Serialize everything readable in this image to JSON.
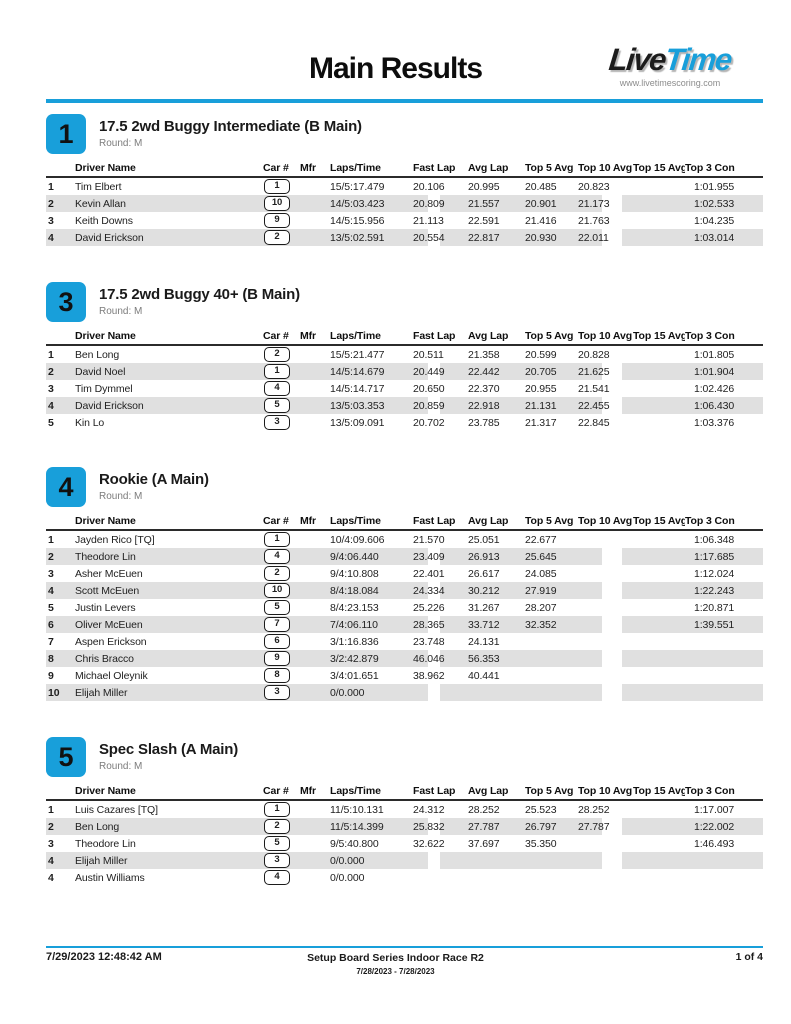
{
  "header": {
    "title": "Main Results",
    "logo_live": "Live",
    "logo_time": "Time",
    "logo_url": "www.livetimescoring.com"
  },
  "columns": [
    "Driver Name",
    "Car #",
    "Mfr",
    "Laps/Time",
    "Fast Lap",
    "Avg Lap",
    "Top 5 Avg",
    "Top 10 Avg",
    "Top 15 Avg",
    "Top 3 Con"
  ],
  "sections": [
    {
      "number": "1",
      "title": "17.5 2wd Buggy Intermediate (B Main)",
      "round": "Round: M",
      "rows": [
        {
          "pos": "1",
          "driver": "Tim Elbert",
          "car": "1",
          "mfr": "",
          "laps_time": "15/5:17.479",
          "fast_lap": "20.106",
          "avg_lap": "20.995",
          "top5": "20.485",
          "top10": "20.823",
          "top15": "",
          "top3con": "1:01.955"
        },
        {
          "pos": "2",
          "driver": "Kevin Allan",
          "car": "10",
          "mfr": "",
          "laps_time": "14/5:03.423",
          "fast_lap": "20.809",
          "avg_lap": "21.557",
          "top5": "20.901",
          "top10": "21.173",
          "top15": "",
          "top3con": "1:02.533"
        },
        {
          "pos": "3",
          "driver": "Keith Downs",
          "car": "9",
          "mfr": "",
          "laps_time": "14/5:15.956",
          "fast_lap": "21.113",
          "avg_lap": "22.591",
          "top5": "21.416",
          "top10": "21.763",
          "top15": "",
          "top3con": "1:04.235"
        },
        {
          "pos": "4",
          "driver": "David Erickson",
          "car": "2",
          "mfr": "",
          "laps_time": "13/5:02.591",
          "fast_lap": "20.554",
          "avg_lap": "22.817",
          "top5": "20.930",
          "top10": "22.011",
          "top15": "",
          "top3con": "1:03.014"
        }
      ]
    },
    {
      "number": "3",
      "title": "17.5 2wd Buggy 40+ (B Main)",
      "round": "Round: M",
      "rows": [
        {
          "pos": "1",
          "driver": "Ben Long",
          "car": "2",
          "mfr": "",
          "laps_time": "15/5:21.477",
          "fast_lap": "20.511",
          "avg_lap": "21.358",
          "top5": "20.599",
          "top10": "20.828",
          "top15": "",
          "top3con": "1:01.805"
        },
        {
          "pos": "2",
          "driver": "David Noel",
          "car": "1",
          "mfr": "",
          "laps_time": "14/5:14.679",
          "fast_lap": "20.449",
          "avg_lap": "22.442",
          "top5": "20.705",
          "top10": "21.625",
          "top15": "",
          "top3con": "1:01.904"
        },
        {
          "pos": "3",
          "driver": "Tim Dymmel",
          "car": "4",
          "mfr": "",
          "laps_time": "14/5:14.717",
          "fast_lap": "20.650",
          "avg_lap": "22.370",
          "top5": "20.955",
          "top10": "21.541",
          "top15": "",
          "top3con": "1:02.426"
        },
        {
          "pos": "4",
          "driver": "David Erickson",
          "car": "5",
          "mfr": "",
          "laps_time": "13/5:03.353",
          "fast_lap": "20.859",
          "avg_lap": "22.918",
          "top5": "21.131",
          "top10": "22.455",
          "top15": "",
          "top3con": "1:06.430"
        },
        {
          "pos": "5",
          "driver": "Kin Lo",
          "car": "3",
          "mfr": "",
          "laps_time": "13/5:09.091",
          "fast_lap": "20.702",
          "avg_lap": "23.785",
          "top5": "21.317",
          "top10": "22.845",
          "top15": "",
          "top3con": "1:03.376"
        }
      ]
    },
    {
      "number": "4",
      "title": "Rookie (A Main)",
      "round": "Round: M",
      "rows": [
        {
          "pos": "1",
          "driver": "Jayden Rico [TQ]",
          "car": "1",
          "mfr": "",
          "laps_time": "10/4:09.606",
          "fast_lap": "21.570",
          "avg_lap": "25.051",
          "top5": "22.677",
          "top10": "",
          "top15": "",
          "top3con": "1:06.348"
        },
        {
          "pos": "2",
          "driver": "Theodore Lin",
          "car": "4",
          "mfr": "",
          "laps_time": "9/4:06.440",
          "fast_lap": "23.409",
          "avg_lap": "26.913",
          "top5": "25.645",
          "top10": "",
          "top15": "",
          "top3con": "1:17.685"
        },
        {
          "pos": "3",
          "driver": "Asher McEuen",
          "car": "2",
          "mfr": "",
          "laps_time": "9/4:10.808",
          "fast_lap": "22.401",
          "avg_lap": "26.617",
          "top5": "24.085",
          "top10": "",
          "top15": "",
          "top3con": "1:12.024"
        },
        {
          "pos": "4",
          "driver": "Scott McEuen",
          "car": "10",
          "mfr": "",
          "laps_time": "8/4:18.084",
          "fast_lap": "24.334",
          "avg_lap": "30.212",
          "top5": "27.919",
          "top10": "",
          "top15": "",
          "top3con": "1:22.243"
        },
        {
          "pos": "5",
          "driver": "Justin Levers",
          "car": "5",
          "mfr": "",
          "laps_time": "8/4:23.153",
          "fast_lap": "25.226",
          "avg_lap": "31.267",
          "top5": "28.207",
          "top10": "",
          "top15": "",
          "top3con": "1:20.871"
        },
        {
          "pos": "6",
          "driver": "Oliver McEuen",
          "car": "7",
          "mfr": "",
          "laps_time": "7/4:06.110",
          "fast_lap": "28.365",
          "avg_lap": "33.712",
          "top5": "32.352",
          "top10": "",
          "top15": "",
          "top3con": "1:39.551"
        },
        {
          "pos": "7",
          "driver": "Aspen Erickson",
          "car": "6",
          "mfr": "",
          "laps_time": "3/1:16.836",
          "fast_lap": "23.748",
          "avg_lap": "24.131",
          "top5": "",
          "top10": "",
          "top15": "",
          "top3con": ""
        },
        {
          "pos": "8",
          "driver": "Chris Bracco",
          "car": "9",
          "mfr": "",
          "laps_time": "3/2:42.879",
          "fast_lap": "46.046",
          "avg_lap": "56.353",
          "top5": "",
          "top10": "",
          "top15": "",
          "top3con": ""
        },
        {
          "pos": "9",
          "driver": "Michael Oleynik",
          "car": "8",
          "mfr": "",
          "laps_time": "3/4:01.651",
          "fast_lap": "38.962",
          "avg_lap": "40.441",
          "top5": "",
          "top10": "",
          "top15": "",
          "top3con": ""
        },
        {
          "pos": "10",
          "driver": "Elijah Miller",
          "car": "3",
          "mfr": "",
          "laps_time": "0/0.000",
          "fast_lap": "",
          "avg_lap": "",
          "top5": "",
          "top10": "",
          "top15": "",
          "top3con": ""
        }
      ]
    },
    {
      "number": "5",
      "title": "Spec Slash (A Main)",
      "round": "Round: M",
      "rows": [
        {
          "pos": "1",
          "driver": "Luis Cazares [TQ]",
          "car": "1",
          "mfr": "",
          "laps_time": "11/5:10.131",
          "fast_lap": "24.312",
          "avg_lap": "28.252",
          "top5": "25.523",
          "top10": "28.252",
          "top15": "",
          "top3con": "1:17.007"
        },
        {
          "pos": "2",
          "driver": "Ben Long",
          "car": "2",
          "mfr": "",
          "laps_time": "11/5:14.399",
          "fast_lap": "25.832",
          "avg_lap": "27.787",
          "top5": "26.797",
          "top10": "27.787",
          "top15": "",
          "top3con": "1:22.002"
        },
        {
          "pos": "3",
          "driver": "Theodore Lin",
          "car": "5",
          "mfr": "",
          "laps_time": "9/5:40.800",
          "fast_lap": "32.622",
          "avg_lap": "37.697",
          "top5": "35.350",
          "top10": "",
          "top15": "",
          "top3con": "1:46.493"
        },
        {
          "pos": "4",
          "driver": "Elijah Miller",
          "car": "3",
          "mfr": "",
          "laps_time": "0/0.000",
          "fast_lap": "",
          "avg_lap": "",
          "top5": "",
          "top10": "",
          "top15": "",
          "top3con": ""
        },
        {
          "pos": "4",
          "driver": "Austin Williams",
          "car": "4",
          "mfr": "",
          "laps_time": "0/0.000",
          "fast_lap": "",
          "avg_lap": "",
          "top5": "",
          "top10": "",
          "top15": "",
          "top3con": ""
        }
      ]
    }
  ],
  "footer": {
    "generated": "7/29/2023 12:48:42 AM",
    "event": "Setup Board Series Indoor Race R2",
    "dates": "7/28/2023 - 7/28/2023",
    "page": "1 of 4"
  },
  "colors": {
    "accent": "#189FDA",
    "row_alt": "#E0E0E0"
  }
}
